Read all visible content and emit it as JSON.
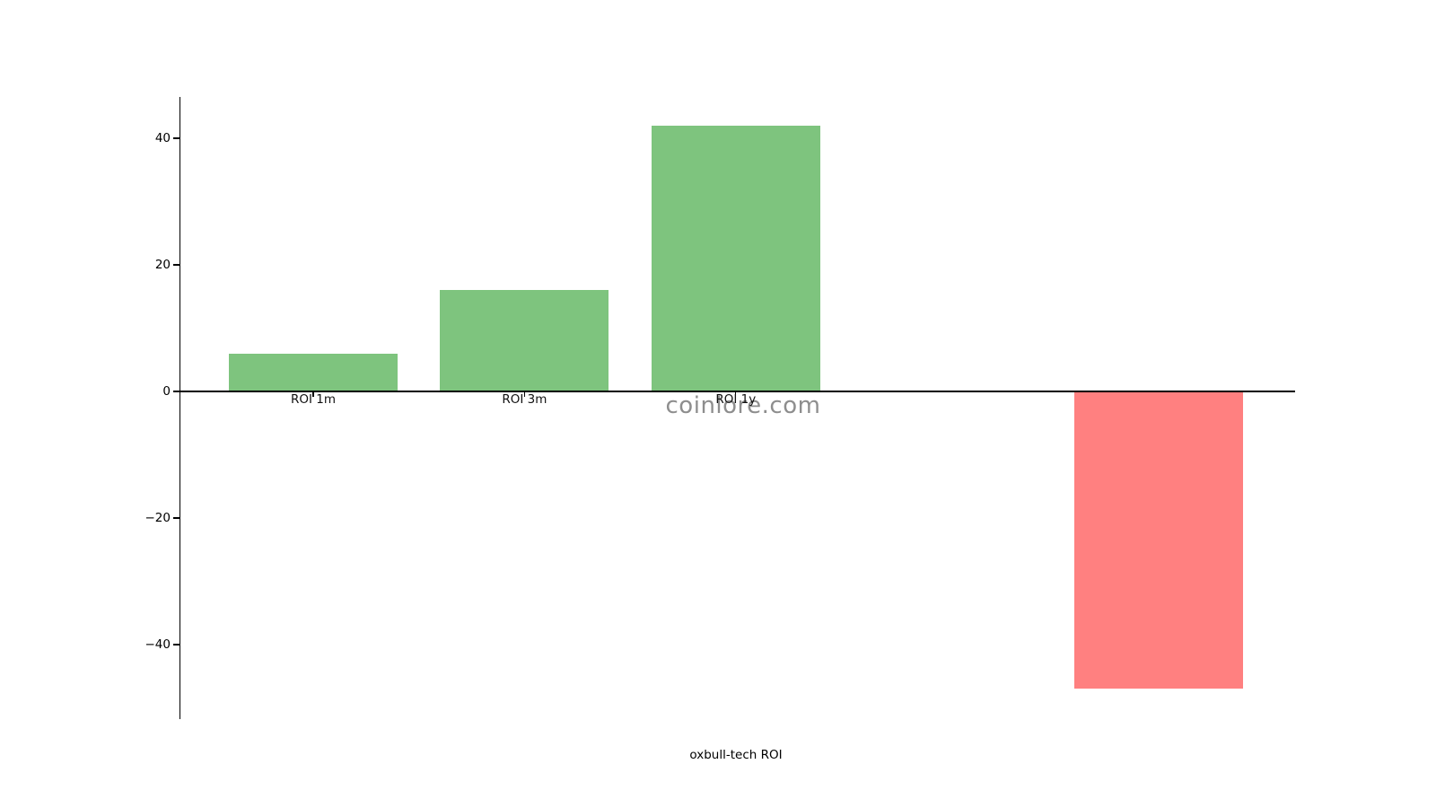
{
  "chart_data": {
    "type": "bar",
    "categories": [
      "ROI 1m",
      "ROI 3m",
      "ROI 1y",
      "",
      ""
    ],
    "values": [
      6,
      16,
      42,
      0,
      -47
    ],
    "xlabel": "oxbull-tech ROI",
    "yticks": [
      40,
      20,
      0,
      -20,
      -40
    ],
    "ytick_labels": [
      "40",
      "20",
      "0",
      "−20",
      "−40"
    ],
    "ylim": [
      -52,
      46.5
    ],
    "grid": "off",
    "legend": "none",
    "bar_colors": {
      "positive": "#7ec47e",
      "negative": "#ff8080"
    },
    "axis_color": "#000000",
    "watermark": {
      "text": "coinlore.com",
      "color": "#8e8e8e"
    }
  }
}
